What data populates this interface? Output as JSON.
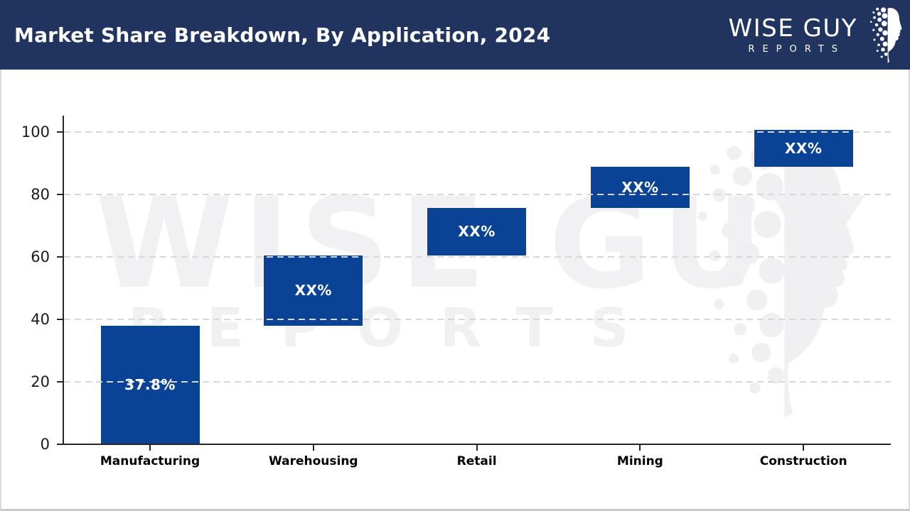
{
  "header": {
    "title": "Market Share Breakdown, By Application, 2024",
    "logo": {
      "wordmark": "WISE GUY",
      "subtext": "REPORTS"
    }
  },
  "watermark": {
    "wordmark": "WISE GUY",
    "subtext": "REPORTS"
  },
  "chart_data": {
    "type": "bar",
    "variant": "waterfall",
    "title": "Market Share Breakdown, By Application, 2024",
    "categories": [
      "Manufacturing",
      "Warehousing",
      "Retail",
      "Mining",
      "Construction"
    ],
    "segments": [
      {
        "category": "Manufacturing",
        "start": 0,
        "end": 37.8,
        "label": "37.8%"
      },
      {
        "category": "Warehousing",
        "start": 37.8,
        "end": 60.2,
        "label": "XX%"
      },
      {
        "category": "Retail",
        "start": 60.2,
        "end": 75.5,
        "label": "XX%"
      },
      {
        "category": "Mining",
        "start": 75.5,
        "end": 88.6,
        "label": "XX%"
      },
      {
        "category": "Construction",
        "start": 88.6,
        "end": 100.5,
        "label": "XX%"
      }
    ],
    "yticks": [
      0,
      20,
      40,
      60,
      80,
      100
    ],
    "ylim": [
      0,
      105
    ],
    "xlabel": "",
    "ylabel": "",
    "legend": null,
    "grid": "horizontal-dashed",
    "colors": {
      "bar": "#0a4296",
      "bar_label": "#ffffff",
      "grid": "#d8d8d8",
      "axis": "#262626",
      "header_bg": "#21345f",
      "watermark": "#f1f1f3"
    }
  }
}
